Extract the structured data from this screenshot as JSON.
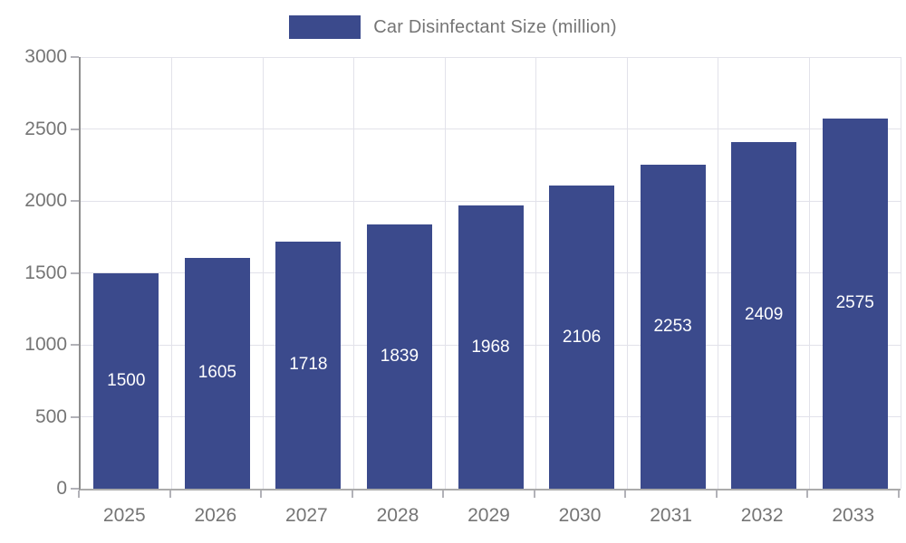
{
  "chart": {
    "legend_label": "Car Disinfectant Size (million)",
    "colors": {
      "bar": "#3b4a8c",
      "grid": "#e2e2ea",
      "axis_y": "#8e8e8e",
      "axis_x": "#ababab",
      "tick_text": "#757575",
      "bar_label": "#ffffff",
      "background": "#ffffff"
    }
  },
  "chart_data": {
    "type": "bar",
    "title": "",
    "series_name": "Car Disinfectant Size (million)",
    "categories": [
      "2025",
      "2026",
      "2027",
      "2028",
      "2029",
      "2030",
      "2031",
      "2032",
      "2033"
    ],
    "values": [
      1500,
      1605,
      1718,
      1839,
      1968,
      2106,
      2253,
      2409,
      2575
    ],
    "xlabel": "",
    "ylabel": "",
    "ylim": [
      0,
      3000
    ],
    "yticks": [
      0,
      500,
      1000,
      1500,
      2000,
      2500,
      3000
    ],
    "grid": true,
    "legend_position": "top-center",
    "bar_label_position": "inside-center"
  }
}
